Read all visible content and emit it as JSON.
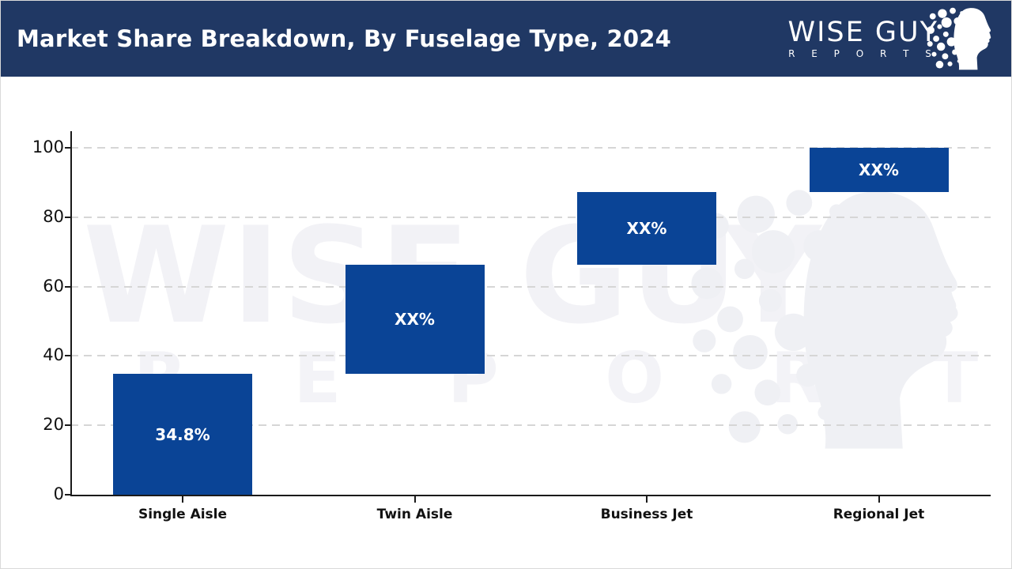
{
  "header": {
    "title": "Market Share Breakdown, By Fuselage Type, 2024",
    "logo": {
      "name": "WISE GUY",
      "sub": "R E P O R T S"
    }
  },
  "watermark": {
    "line1": "WISE GU",
    "line1_tail": "Y",
    "sub": "R E P O R T S"
  },
  "chart_data": {
    "type": "bar",
    "variant": "waterfall (floating cumulative segments)",
    "title": "Market Share Breakdown, By Fuselage Type, 2024",
    "categories": [
      "Single Aisle",
      "Twin Aisle",
      "Business Jet",
      "Regional Jet"
    ],
    "series": [
      {
        "name": "Market share (%)",
        "segments": [
          {
            "category": "Single Aisle",
            "start": 0,
            "end": 34.8,
            "label": "34.8%"
          },
          {
            "category": "Twin Aisle",
            "start": 34.8,
            "end": 66.4,
            "label": "XX%"
          },
          {
            "category": "Business Jet",
            "start": 66.4,
            "end": 87.3,
            "label": "XX%"
          },
          {
            "category": "Regional Jet",
            "start": 87.3,
            "end": 100,
            "label": "XX%"
          }
        ]
      }
    ],
    "xlabel": "",
    "ylabel": "",
    "ylim": [
      0,
      105
    ],
    "yticks": [
      0,
      20,
      40,
      60,
      80,
      100
    ],
    "grid": "horizontal dashed",
    "legend": "none",
    "colors": {
      "bar": "#0a4496",
      "bar_label": "#ffffff",
      "header_bg": "#203864",
      "axis": "#1a1a1a",
      "grid": "#d6d6d6",
      "watermark": "#f2f2f6"
    }
  }
}
